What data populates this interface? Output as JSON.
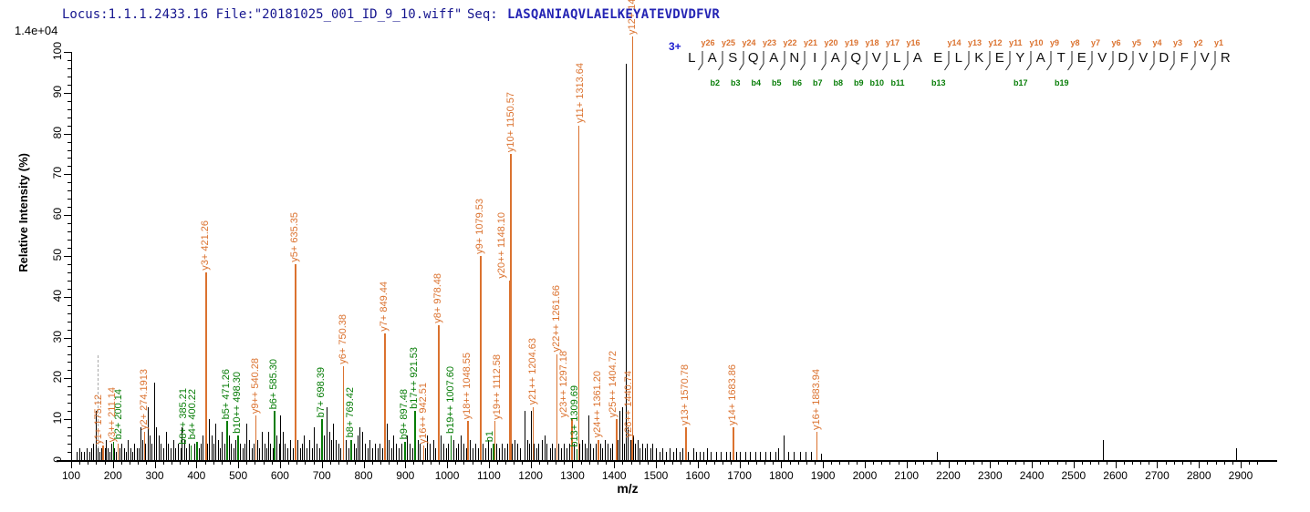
{
  "header": {
    "locus_text": "Locus:1.1.1.2433.16 File:\"20181025_001_ID_9_10.wiff\"",
    "seq_label": "Seq:",
    "sequence": "LASQANIAQVLAELKEYATEVDVDFVR"
  },
  "colors": {
    "y_ion": "#DB722F",
    "b_ion": "#077D07",
    "noise": "#000000",
    "charge_blue": "#2020D0",
    "locus_navy": "#16168F",
    "seq_blue": "#2424B4",
    "axis": "#000000"
  },
  "ladder": {
    "charge_label": "3+",
    "residues": [
      "L",
      "A",
      "S",
      "Q",
      "A",
      "N",
      "I",
      "A",
      "Q",
      "V",
      "L",
      "A",
      "E",
      "L",
      "K",
      "E",
      "Y",
      "A",
      "T",
      "E",
      "V",
      "D",
      "V",
      "D",
      "F",
      "V",
      "R"
    ],
    "sites": [
      {
        "y": "y26",
        "b": ""
      },
      {
        "y": "y25",
        "b": "b2"
      },
      {
        "y": "y24",
        "b": "b3"
      },
      {
        "y": "y23",
        "b": "b4"
      },
      {
        "y": "y22",
        "b": "b5"
      },
      {
        "y": "y21",
        "b": "b6"
      },
      {
        "y": "y20",
        "b": "b7"
      },
      {
        "y": "y19",
        "b": "b8"
      },
      {
        "y": "y18",
        "b": "b9"
      },
      {
        "y": "y17",
        "b": "b10"
      },
      {
        "y": "y16",
        "b": "b11"
      },
      {
        "y": "",
        "b": ""
      },
      {
        "y": "y14",
        "b": "b13"
      },
      {
        "y": "y13",
        "b": ""
      },
      {
        "y": "y12",
        "b": ""
      },
      {
        "y": "y11",
        "b": ""
      },
      {
        "y": "y10",
        "b": "b17"
      },
      {
        "y": "y9",
        "b": ""
      },
      {
        "y": "y8",
        "b": "b19"
      },
      {
        "y": "y7",
        "b": ""
      },
      {
        "y": "y6",
        "b": ""
      },
      {
        "y": "y5",
        "b": ""
      },
      {
        "y": "y4",
        "b": ""
      },
      {
        "y": "y3",
        "b": ""
      },
      {
        "y": "y2",
        "b": ""
      },
      {
        "y": "y1",
        "b": ""
      }
    ]
  },
  "chart_data": {
    "type": "bar",
    "title": "",
    "xlabel": "m/z",
    "ylabel": "Relative  Intensity (%)",
    "intensity_scale_note": "1.4e+04",
    "xlim": [
      100,
      2950
    ],
    "ylim": [
      0,
      100
    ],
    "x_tick_step": 100,
    "x_minor_tick_step": 20,
    "x_tick_labels": [
      100,
      200,
      300,
      400,
      500,
      600,
      700,
      800,
      900,
      1000,
      1100,
      1200,
      1300,
      1400,
      1500,
      1600,
      1700,
      1800,
      1900,
      2000,
      2100,
      2200,
      2300,
      2400,
      2500,
      2600,
      2700,
      2800,
      2900
    ],
    "y_tick_step": 10,
    "y_minor_tick_step": 2,
    "y_tick_labels": [
      0,
      10,
      20,
      30,
      40,
      50,
      60,
      70,
      80,
      90,
      100
    ],
    "legend": "none",
    "grid": false,
    "annotated_peaks": [
      {
        "mz": 175.12,
        "pct": 3.5,
        "ion": "y",
        "label": "y1+ 175.12",
        "dx": -4
      },
      {
        "mz": 200.14,
        "pct": 4.5,
        "ion": "b",
        "label": "b2+ 200.14",
        "dx": 6
      },
      {
        "mz": 211.14,
        "pct": 4,
        "ion": "y",
        "label": "y3++ 211.14",
        "dx": -6
      },
      {
        "mz": 274.19,
        "pct": 7,
        "ion": "y",
        "label": "y2+ 274.1913",
        "dx": 0
      },
      {
        "mz": 385.21,
        "pct": 3.5,
        "ion": "b",
        "label": "b8++ 385.21",
        "dx": -8
      },
      {
        "mz": 400.22,
        "pct": 4.5,
        "ion": "b",
        "label": "b4+ 400.22",
        "dx": -4
      },
      {
        "mz": 421.26,
        "pct": 46,
        "ion": "y",
        "label": "y3+ 421.26",
        "dx": 0
      },
      {
        "mz": 471.26,
        "pct": 9.5,
        "ion": "b",
        "label": "b5+ 471.26",
        "dx": 0
      },
      {
        "mz": 498.3,
        "pct": 6,
        "ion": "b",
        "label": "b10++ 498.30",
        "dx": 0
      },
      {
        "mz": 540.28,
        "pct": 11,
        "ion": "y",
        "label": "y9++ 540.28",
        "dx": 0
      },
      {
        "mz": 585.3,
        "pct": 12,
        "ion": "b",
        "label": "b6+ 585.30",
        "dx": 0
      },
      {
        "mz": 635.35,
        "pct": 48,
        "ion": "y",
        "label": "y5+ 635.35",
        "dx": 0
      },
      {
        "mz": 698.39,
        "pct": 10,
        "ion": "b",
        "label": "b7+ 698.39",
        "dx": 0
      },
      {
        "mz": 750.38,
        "pct": 23,
        "ion": "y",
        "label": "y6+ 750.38",
        "dx": 0
      },
      {
        "mz": 769.42,
        "pct": 5,
        "ion": "b",
        "label": "b8+ 769.42",
        "dx": 0
      },
      {
        "mz": 849.44,
        "pct": 31,
        "ion": "y",
        "label": "y7+ 849.44",
        "dx": 0
      },
      {
        "mz": 897.48,
        "pct": 4.5,
        "ion": "b",
        "label": "b9+ 897.48",
        "dx": 0
      },
      {
        "mz": 921.53,
        "pct": 12,
        "ion": "b",
        "label": "b17++ 921.53",
        "dx": 0
      },
      {
        "mz": 942.51,
        "pct": 3.5,
        "ion": "y",
        "label": "y16++ 942.51",
        "dx": 0
      },
      {
        "mz": 978.48,
        "pct": 33,
        "ion": "y",
        "label": "y8+ 978.48",
        "dx": 0
      },
      {
        "mz": 1007.6,
        "pct": 6,
        "ion": "b",
        "label": "b19++ 1007.60",
        "dx": 0
      },
      {
        "mz": 1048.55,
        "pct": 9.5,
        "ion": "y",
        "label": "y18++ 1048.55",
        "dx": 0
      },
      {
        "mz": 1079.53,
        "pct": 50,
        "ion": "y",
        "label": "y9+ 1079.53",
        "dx": 0
      },
      {
        "mz": 1109.63,
        "pct": 4,
        "ion": "b",
        "label": "b1",
        "dx": -3
      },
      {
        "mz": 1112.58,
        "pct": 9.5,
        "ion": "y",
        "label": "y19++ 1112.58",
        "dx": 3
      },
      {
        "mz": 1148.1,
        "pct": 44,
        "ion": "y",
        "label": "y20++ 1148.10",
        "dx": -8
      },
      {
        "mz": 1150.57,
        "pct": 75,
        "ion": "y",
        "label": "y10+ 1150.57",
        "dx": 1
      },
      {
        "mz": 1204.63,
        "pct": 13,
        "ion": "y",
        "label": "y21++ 1204.63",
        "dx": 0
      },
      {
        "mz": 1261.66,
        "pct": 26,
        "ion": "y",
        "label": "y22++ 1261.66",
        "dx": 0
      },
      {
        "mz": 1297.18,
        "pct": 10,
        "ion": "y",
        "label": "y23++ 1297.18",
        "dx": -8
      },
      {
        "mz": 1309.69,
        "pct": 2.7,
        "ion": "b",
        "label": "b13+ 1309.69",
        "dx": -2
      },
      {
        "mz": 1313.64,
        "pct": 82,
        "ion": "y",
        "label": "y11+ 1313.64",
        "dx": 2
      },
      {
        "mz": 1361.2,
        "pct": 5,
        "ion": "y",
        "label": "y24++ 1361.20",
        "dx": 0
      },
      {
        "mz": 1404.72,
        "pct": 10,
        "ion": "y",
        "label": "y25++ 1404.72",
        "dx": -3
      },
      {
        "mz": 1440.74,
        "pct": 5,
        "ion": "y",
        "label": "y26++ 1440.74",
        "dx": -3
      },
      {
        "mz": 1442.68,
        "pct": 100,
        "ion": "y",
        "label": "y12+ 1442.68",
        "dx": 0
      },
      {
        "mz": 1570.78,
        "pct": 8,
        "ion": "y",
        "label": "y13+ 1570.78",
        "dx": 0
      },
      {
        "mz": 1683.86,
        "pct": 8,
        "ion": "y",
        "label": "y14+ 1683.86",
        "dx": 0
      },
      {
        "mz": 1883.94,
        "pct": 7,
        "ion": "y",
        "label": "y16+ 1883.94",
        "dx": 0
      }
    ],
    "noise_peaks": [
      [
        113,
        2
      ],
      [
        119,
        3
      ],
      [
        125,
        2
      ],
      [
        131,
        2
      ],
      [
        137,
        3
      ],
      [
        143,
        2
      ],
      [
        147,
        3
      ],
      [
        152,
        4
      ],
      [
        158,
        12
      ],
      [
        163,
        3
      ],
      [
        167,
        2
      ],
      [
        172,
        3
      ],
      [
        180,
        3
      ],
      [
        183,
        5
      ],
      [
        187,
        3
      ],
      [
        192,
        2
      ],
      [
        196,
        4
      ],
      [
        203,
        3
      ],
      [
        208,
        2
      ],
      [
        216,
        3
      ],
      [
        221,
        4
      ],
      [
        227,
        3
      ],
      [
        232,
        2
      ],
      [
        236,
        5
      ],
      [
        241,
        3
      ],
      [
        246,
        2
      ],
      [
        251,
        4
      ],
      [
        257,
        3
      ],
      [
        262,
        3
      ],
      [
        266,
        8
      ],
      [
        270,
        5
      ],
      [
        278,
        4
      ],
      [
        283,
        13
      ],
      [
        288,
        6
      ],
      [
        293,
        4
      ],
      [
        299,
        19
      ],
      [
        304,
        8
      ],
      [
        309,
        6
      ],
      [
        315,
        4
      ],
      [
        321,
        3
      ],
      [
        327,
        7
      ],
      [
        332,
        4
      ],
      [
        338,
        3
      ],
      [
        344,
        5
      ],
      [
        350,
        3
      ],
      [
        356,
        4
      ],
      [
        361,
        3
      ],
      [
        365,
        8
      ],
      [
        370,
        5
      ],
      [
        376,
        3
      ],
      [
        381,
        4
      ],
      [
        387,
        3
      ],
      [
        394,
        4
      ],
      [
        405,
        3
      ],
      [
        410,
        4
      ],
      [
        415,
        6
      ],
      [
        426,
        4
      ],
      [
        430,
        10
      ],
      [
        436,
        6
      ],
      [
        441,
        4
      ],
      [
        445,
        9
      ],
      [
        451,
        5
      ],
      [
        457,
        3
      ],
      [
        460,
        7
      ],
      [
        466,
        4
      ],
      [
        472,
        3
      ],
      [
        478,
        6
      ],
      [
        483,
        4
      ],
      [
        489,
        3
      ],
      [
        493,
        5
      ],
      [
        500,
        3
      ],
      [
        505,
        4
      ],
      [
        511,
        3
      ],
      [
        516,
        4
      ],
      [
        520,
        9
      ],
      [
        526,
        5
      ],
      [
        532,
        3
      ],
      [
        537,
        4
      ],
      [
        545,
        5
      ],
      [
        551,
        3
      ],
      [
        556,
        7
      ],
      [
        562,
        4
      ],
      [
        568,
        3
      ],
      [
        571,
        7
      ],
      [
        577,
        4
      ],
      [
        583,
        3
      ],
      [
        592,
        6
      ],
      [
        597,
        4
      ],
      [
        600,
        11
      ],
      [
        606,
        7
      ],
      [
        612,
        4
      ],
      [
        618,
        3
      ],
      [
        624,
        5
      ],
      [
        630,
        3
      ],
      [
        642,
        5
      ],
      [
        648,
        3
      ],
      [
        653,
        4
      ],
      [
        658,
        6
      ],
      [
        664,
        3
      ],
      [
        670,
        5
      ],
      [
        676,
        3
      ],
      [
        682,
        8
      ],
      [
        688,
        4
      ],
      [
        694,
        3
      ],
      [
        705,
        6
      ],
      [
        712,
        13
      ],
      [
        718,
        7
      ],
      [
        723,
        5
      ],
      [
        727,
        9
      ],
      [
        733,
        5
      ],
      [
        739,
        4
      ],
      [
        745,
        3
      ],
      [
        757,
        5
      ],
      [
        763,
        3
      ],
      [
        776,
        4
      ],
      [
        781,
        3
      ],
      [
        786,
        6
      ],
      [
        791,
        8
      ],
      [
        797,
        7
      ],
      [
        803,
        4
      ],
      [
        809,
        3
      ],
      [
        815,
        5
      ],
      [
        821,
        3
      ],
      [
        827,
        4
      ],
      [
        833,
        3
      ],
      [
        839,
        4
      ],
      [
        845,
        3
      ],
      [
        856,
        9
      ],
      [
        861,
        5
      ],
      [
        867,
        3
      ],
      [
        872,
        6
      ],
      [
        878,
        4
      ],
      [
        884,
        3
      ],
      [
        890,
        4
      ],
      [
        904,
        6
      ],
      [
        910,
        4
      ],
      [
        916,
        3
      ],
      [
        929,
        5
      ],
      [
        935,
        4
      ],
      [
        947,
        3
      ],
      [
        952,
        6
      ],
      [
        958,
        4
      ],
      [
        966,
        5
      ],
      [
        971,
        3
      ],
      [
        985,
        6
      ],
      [
        991,
        4
      ],
      [
        997,
        3
      ],
      [
        1003,
        4
      ],
      [
        1015,
        5
      ],
      [
        1021,
        3
      ],
      [
        1027,
        4
      ],
      [
        1033,
        6
      ],
      [
        1040,
        4
      ],
      [
        1046,
        3
      ],
      [
        1055,
        5
      ],
      [
        1061,
        3
      ],
      [
        1068,
        4
      ],
      [
        1074,
        3
      ],
      [
        1086,
        4
      ],
      [
        1092,
        3
      ],
      [
        1098,
        5
      ],
      [
        1104,
        3
      ],
      [
        1118,
        4
      ],
      [
        1124,
        3
      ],
      [
        1130,
        4
      ],
      [
        1137,
        3
      ],
      [
        1143,
        4
      ],
      [
        1156,
        4
      ],
      [
        1162,
        5
      ],
      [
        1169,
        4
      ],
      [
        1175,
        3
      ],
      [
        1185,
        12
      ],
      [
        1191,
        5
      ],
      [
        1197,
        4
      ],
      [
        1200,
        12
      ],
      [
        1207,
        4
      ],
      [
        1213,
        3
      ],
      [
        1219,
        4
      ],
      [
        1227,
        5
      ],
      [
        1233,
        6
      ],
      [
        1239,
        4
      ],
      [
        1246,
        3
      ],
      [
        1252,
        4
      ],
      [
        1258,
        3
      ],
      [
        1267,
        4
      ],
      [
        1273,
        3
      ],
      [
        1279,
        4
      ],
      [
        1286,
        3
      ],
      [
        1292,
        4
      ],
      [
        1304,
        4
      ],
      [
        1317,
        4
      ],
      [
        1322,
        5
      ],
      [
        1329,
        4
      ],
      [
        1334,
        3
      ],
      [
        1338,
        11
      ],
      [
        1343,
        4
      ],
      [
        1350,
        3
      ],
      [
        1356,
        4
      ],
      [
        1366,
        4
      ],
      [
        1372,
        3
      ],
      [
        1378,
        5
      ],
      [
        1384,
        4
      ],
      [
        1390,
        3
      ],
      [
        1396,
        4
      ],
      [
        1408,
        5
      ],
      [
        1412,
        12
      ],
      [
        1420,
        13
      ],
      [
        1424,
        4
      ],
      [
        1428,
        97
      ],
      [
        1433,
        8
      ],
      [
        1438,
        5
      ],
      [
        1446,
        6
      ],
      [
        1450,
        4
      ],
      [
        1456,
        5
      ],
      [
        1461,
        3
      ],
      [
        1467,
        4
      ],
      [
        1473,
        3
      ],
      [
        1479,
        4
      ],
      [
        1486,
        3
      ],
      [
        1492,
        4
      ],
      [
        1500,
        3
      ],
      [
        1508,
        2
      ],
      [
        1516,
        3
      ],
      [
        1524,
        2
      ],
      [
        1532,
        3
      ],
      [
        1541,
        2
      ],
      [
        1549,
        3
      ],
      [
        1557,
        2
      ],
      [
        1563,
        3
      ],
      [
        1577,
        2
      ],
      [
        1589,
        3
      ],
      [
        1597,
        2
      ],
      [
        1605,
        2
      ],
      [
        1613,
        2
      ],
      [
        1622,
        3
      ],
      [
        1632,
        2
      ],
      [
        1645,
        2
      ],
      [
        1656,
        2
      ],
      [
        1668,
        2
      ],
      [
        1676,
        2
      ],
      [
        1692,
        2
      ],
      [
        1702,
        2
      ],
      [
        1714,
        2
      ],
      [
        1726,
        2
      ],
      [
        1738,
        2
      ],
      [
        1750,
        2
      ],
      [
        1762,
        2
      ],
      [
        1774,
        2
      ],
      [
        1786,
        2
      ],
      [
        1793,
        3
      ],
      [
        1805,
        6
      ],
      [
        1817,
        2
      ],
      [
        1830,
        2
      ],
      [
        1844,
        2
      ],
      [
        1858,
        2
      ],
      [
        1872,
        2
      ],
      [
        1895,
        1.5
      ],
      [
        2172,
        2
      ],
      [
        2570,
        5
      ],
      [
        2890,
        3
      ]
    ]
  }
}
